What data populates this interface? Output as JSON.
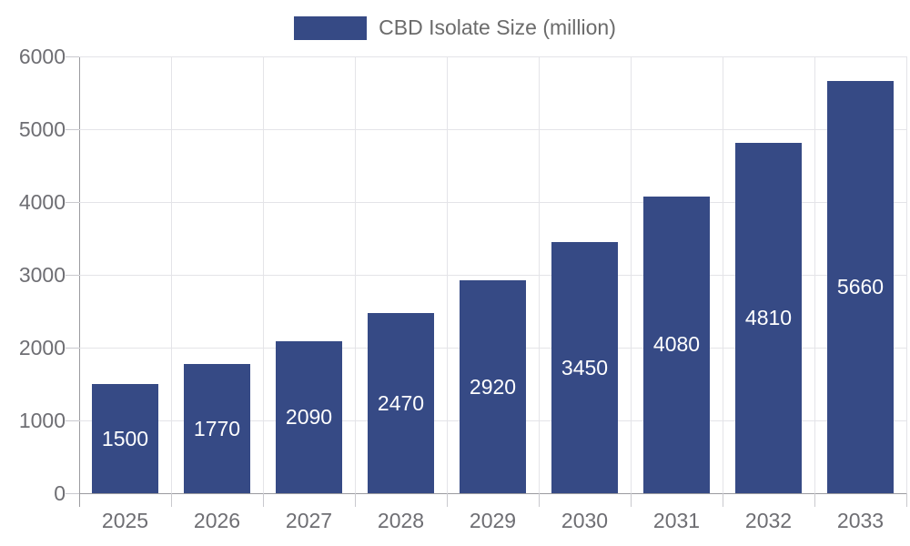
{
  "legend": {
    "label": "CBD Isolate Size (million)"
  },
  "colors": {
    "bar": "#364a85",
    "bar_label": "#ffffff",
    "axis_text": "#6e6e73",
    "legend_text": "#6b6b6b",
    "gridline": "#e4e4e8",
    "axis_line": "#9b9b9f",
    "tick_line": "#c9c9ce",
    "background": "#ffffff"
  },
  "chart_data": {
    "type": "bar",
    "title": "",
    "xlabel": "",
    "ylabel": "",
    "categories": [
      "2025",
      "2026",
      "2027",
      "2028",
      "2029",
      "2030",
      "2031",
      "2032",
      "2033"
    ],
    "values": [
      1500,
      1770,
      2090,
      2470,
      2920,
      3450,
      4080,
      4810,
      5660
    ],
    "series_name": "CBD Isolate Size (million)",
    "ylim": [
      0,
      6000
    ],
    "y_ticks": [
      0,
      1000,
      2000,
      3000,
      4000,
      5000,
      6000
    ],
    "grid": true,
    "legend_position": "top",
    "bar_labels_visible": true,
    "bar_label_position": "inside-center"
  }
}
